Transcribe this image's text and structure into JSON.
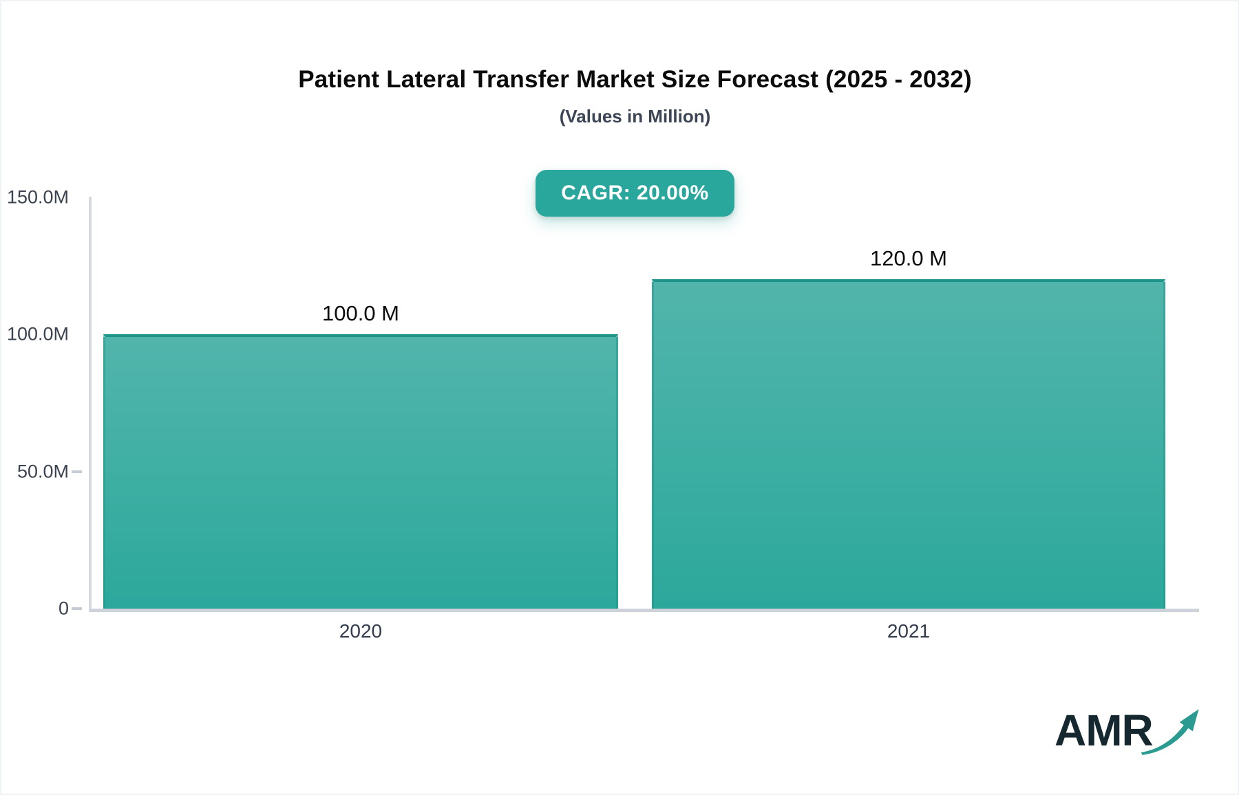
{
  "header": {
    "title": "Patient Lateral Transfer Market Size Forecast (2025 - 2032)",
    "subtitle": "(Values in Million)",
    "cagr_label": "CAGR: 20.00%"
  },
  "chart_data": {
    "type": "bar",
    "title": "Patient Lateral Transfer Market Size Forecast (2025 - 2032)",
    "subtitle": "(Values in Million)",
    "unit": "Million",
    "categories": [
      "2020",
      "2021"
    ],
    "values": [
      100.0,
      120.0
    ],
    "value_labels": [
      "100.0 M",
      "120.0 M"
    ],
    "cagr": "20.00%",
    "ylim": [
      0,
      150
    ],
    "yticks": [
      {
        "value": 0,
        "label": "0",
        "dash": true
      },
      {
        "value": 50,
        "label": "50.0M",
        "dash": true
      },
      {
        "value": 100,
        "label": "100.0M",
        "dash": false
      },
      {
        "value": 150,
        "label": "150.0M",
        "dash": false
      }
    ],
    "grid": false,
    "legend_position": "none",
    "colors": {
      "bar_top": "#52b5ac",
      "bar_bottom": "#2ca89b",
      "bar_edge": "#1f9488",
      "badge": "#2aa79c",
      "axis": "#d6dae0",
      "tick_text": "#3b4350",
      "value_text": "#0b0b0c"
    }
  },
  "logo": {
    "text": "AMR",
    "text_color": "#152830",
    "arrow_color": "#2b9a90"
  }
}
